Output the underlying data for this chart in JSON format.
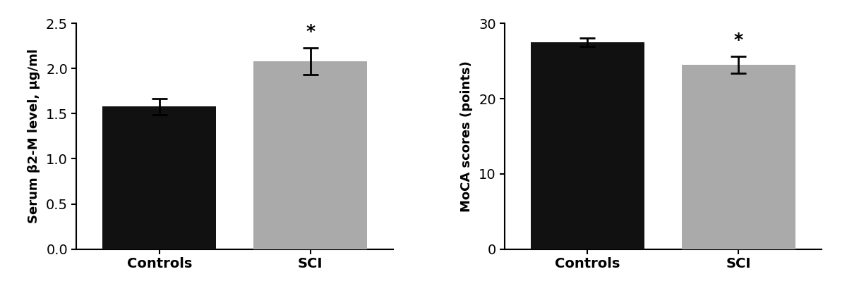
{
  "left": {
    "categories": [
      "Controls",
      "SCI"
    ],
    "values": [
      1.58,
      2.08
    ],
    "errors": [
      0.09,
      0.15
    ],
    "colors": [
      "#111111",
      "#aaaaaa"
    ],
    "ylabel": "Serum β2-M level, μg/ml",
    "ylim": [
      0,
      2.5
    ],
    "yticks": [
      0.0,
      0.5,
      1.0,
      1.5,
      2.0,
      2.5
    ],
    "sig_bar": [
      1
    ],
    "sig_label": "*"
  },
  "right": {
    "categories": [
      "Controls",
      "SCI"
    ],
    "values": [
      27.5,
      24.5
    ],
    "errors": [
      0.55,
      1.1
    ],
    "colors": [
      "#111111",
      "#aaaaaa"
    ],
    "ylabel": "MoCA scores (points)",
    "ylim": [
      0,
      30
    ],
    "yticks": [
      0,
      10,
      20,
      30
    ],
    "sig_bar": [
      1
    ],
    "sig_label": "*"
  },
  "bar_width": 0.75,
  "font_family": "Arial",
  "axis_linewidth": 1.5,
  "tick_fontsize": 14,
  "label_fontsize": 13,
  "sig_fontsize": 18,
  "errorbar_capsize": 8,
  "errorbar_linewidth": 2.0,
  "errorbar_capthick": 2.0,
  "background_color": "#ffffff",
  "xlim": [
    -0.55,
    1.55
  ]
}
